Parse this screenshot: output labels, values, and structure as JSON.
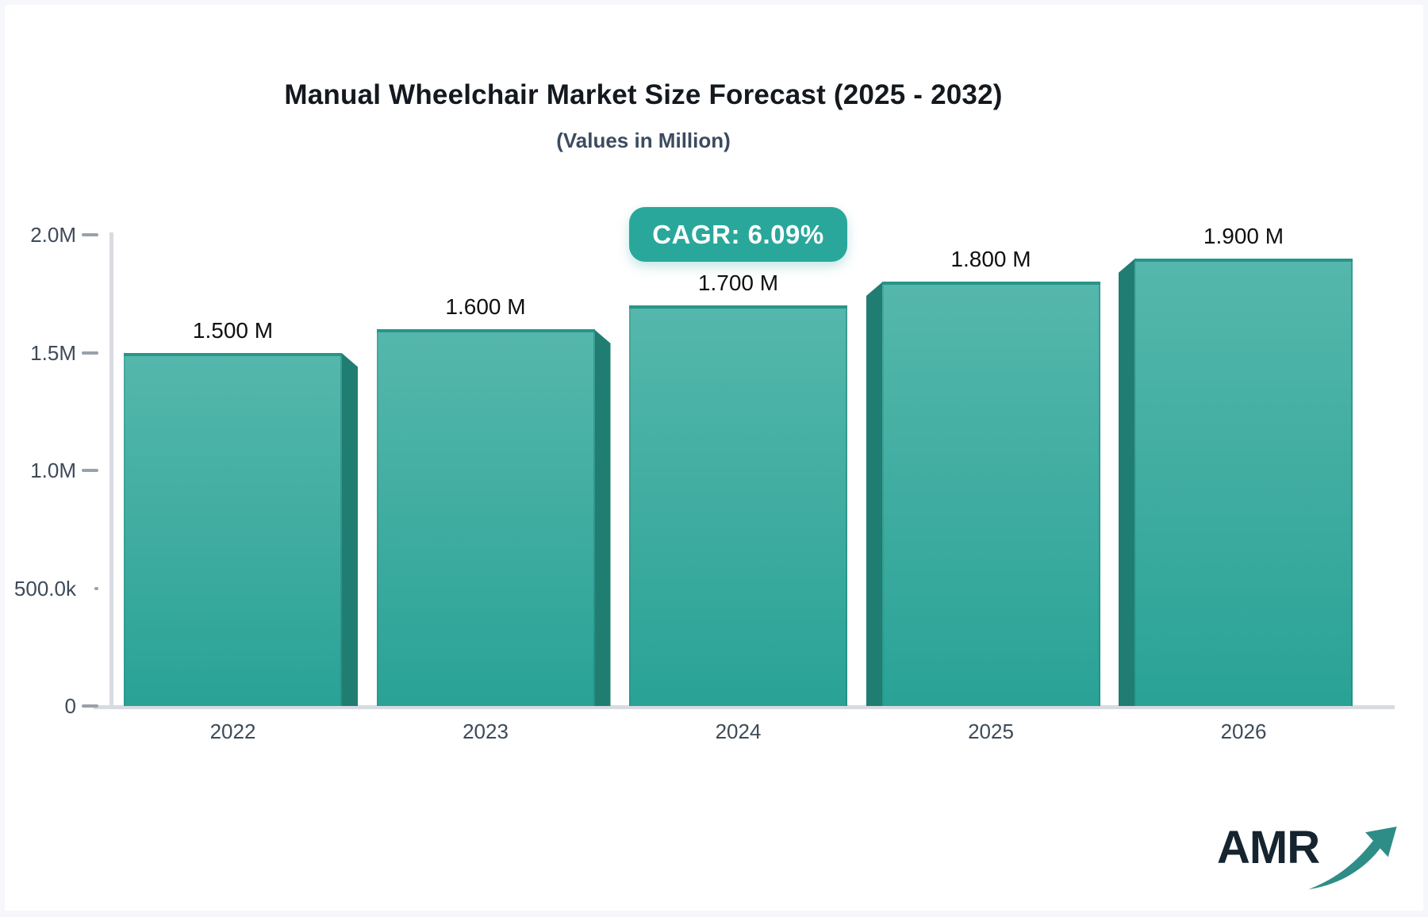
{
  "header": {
    "title": "Manual Wheelchair Market Size Forecast (2025 - 2032)",
    "subtitle": "(Values in Million)"
  },
  "badge": {
    "label": "CAGR: 6.09%"
  },
  "logo": {
    "text": "AMR",
    "arrow_icon": "growth-arrow-icon"
  },
  "colors": {
    "accent": "#2aa79b",
    "bar_top": "#55b7ac",
    "bar_bottom": "#2aa296",
    "bar_rim": "#27958a",
    "bar_side": "#207d72",
    "axis_line": "#d8dbe1",
    "text_dark": "#14181f",
    "text_slate": "#3e4a59",
    "logo_dark": "#16242f",
    "logo_teal": "#2e8d87"
  },
  "chart_data": {
    "type": "bar",
    "title": "Manual Wheelchair Market Size Forecast (2025 - 2032)",
    "subtitle": "(Values in Million)",
    "categories": [
      "2022",
      "2023",
      "2024",
      "2025",
      "2026"
    ],
    "values": [
      1.5,
      1.6,
      1.7,
      1.8,
      1.9
    ],
    "value_labels": [
      "1.500 M",
      "1.600 M",
      "1.700 M",
      "1.800 M",
      "1.900 M"
    ],
    "unit": "Million",
    "cagr": "6.09%",
    "xlabel": "",
    "ylabel": "",
    "ylim": [
      0,
      2.0
    ],
    "grid": false,
    "legend": false,
    "bar_style": "3d-gradient-teal",
    "y_ticks": [
      {
        "label": "2.0M",
        "value": 2.0,
        "minor": false
      },
      {
        "label": "1.5M",
        "value": 1.5,
        "minor": false
      },
      {
        "label": "1.0M",
        "value": 1.0,
        "minor": false
      },
      {
        "label": "500.0k",
        "value": 0.5,
        "minor": true
      },
      {
        "label": "0",
        "value": 0.0,
        "minor": false
      }
    ]
  }
}
